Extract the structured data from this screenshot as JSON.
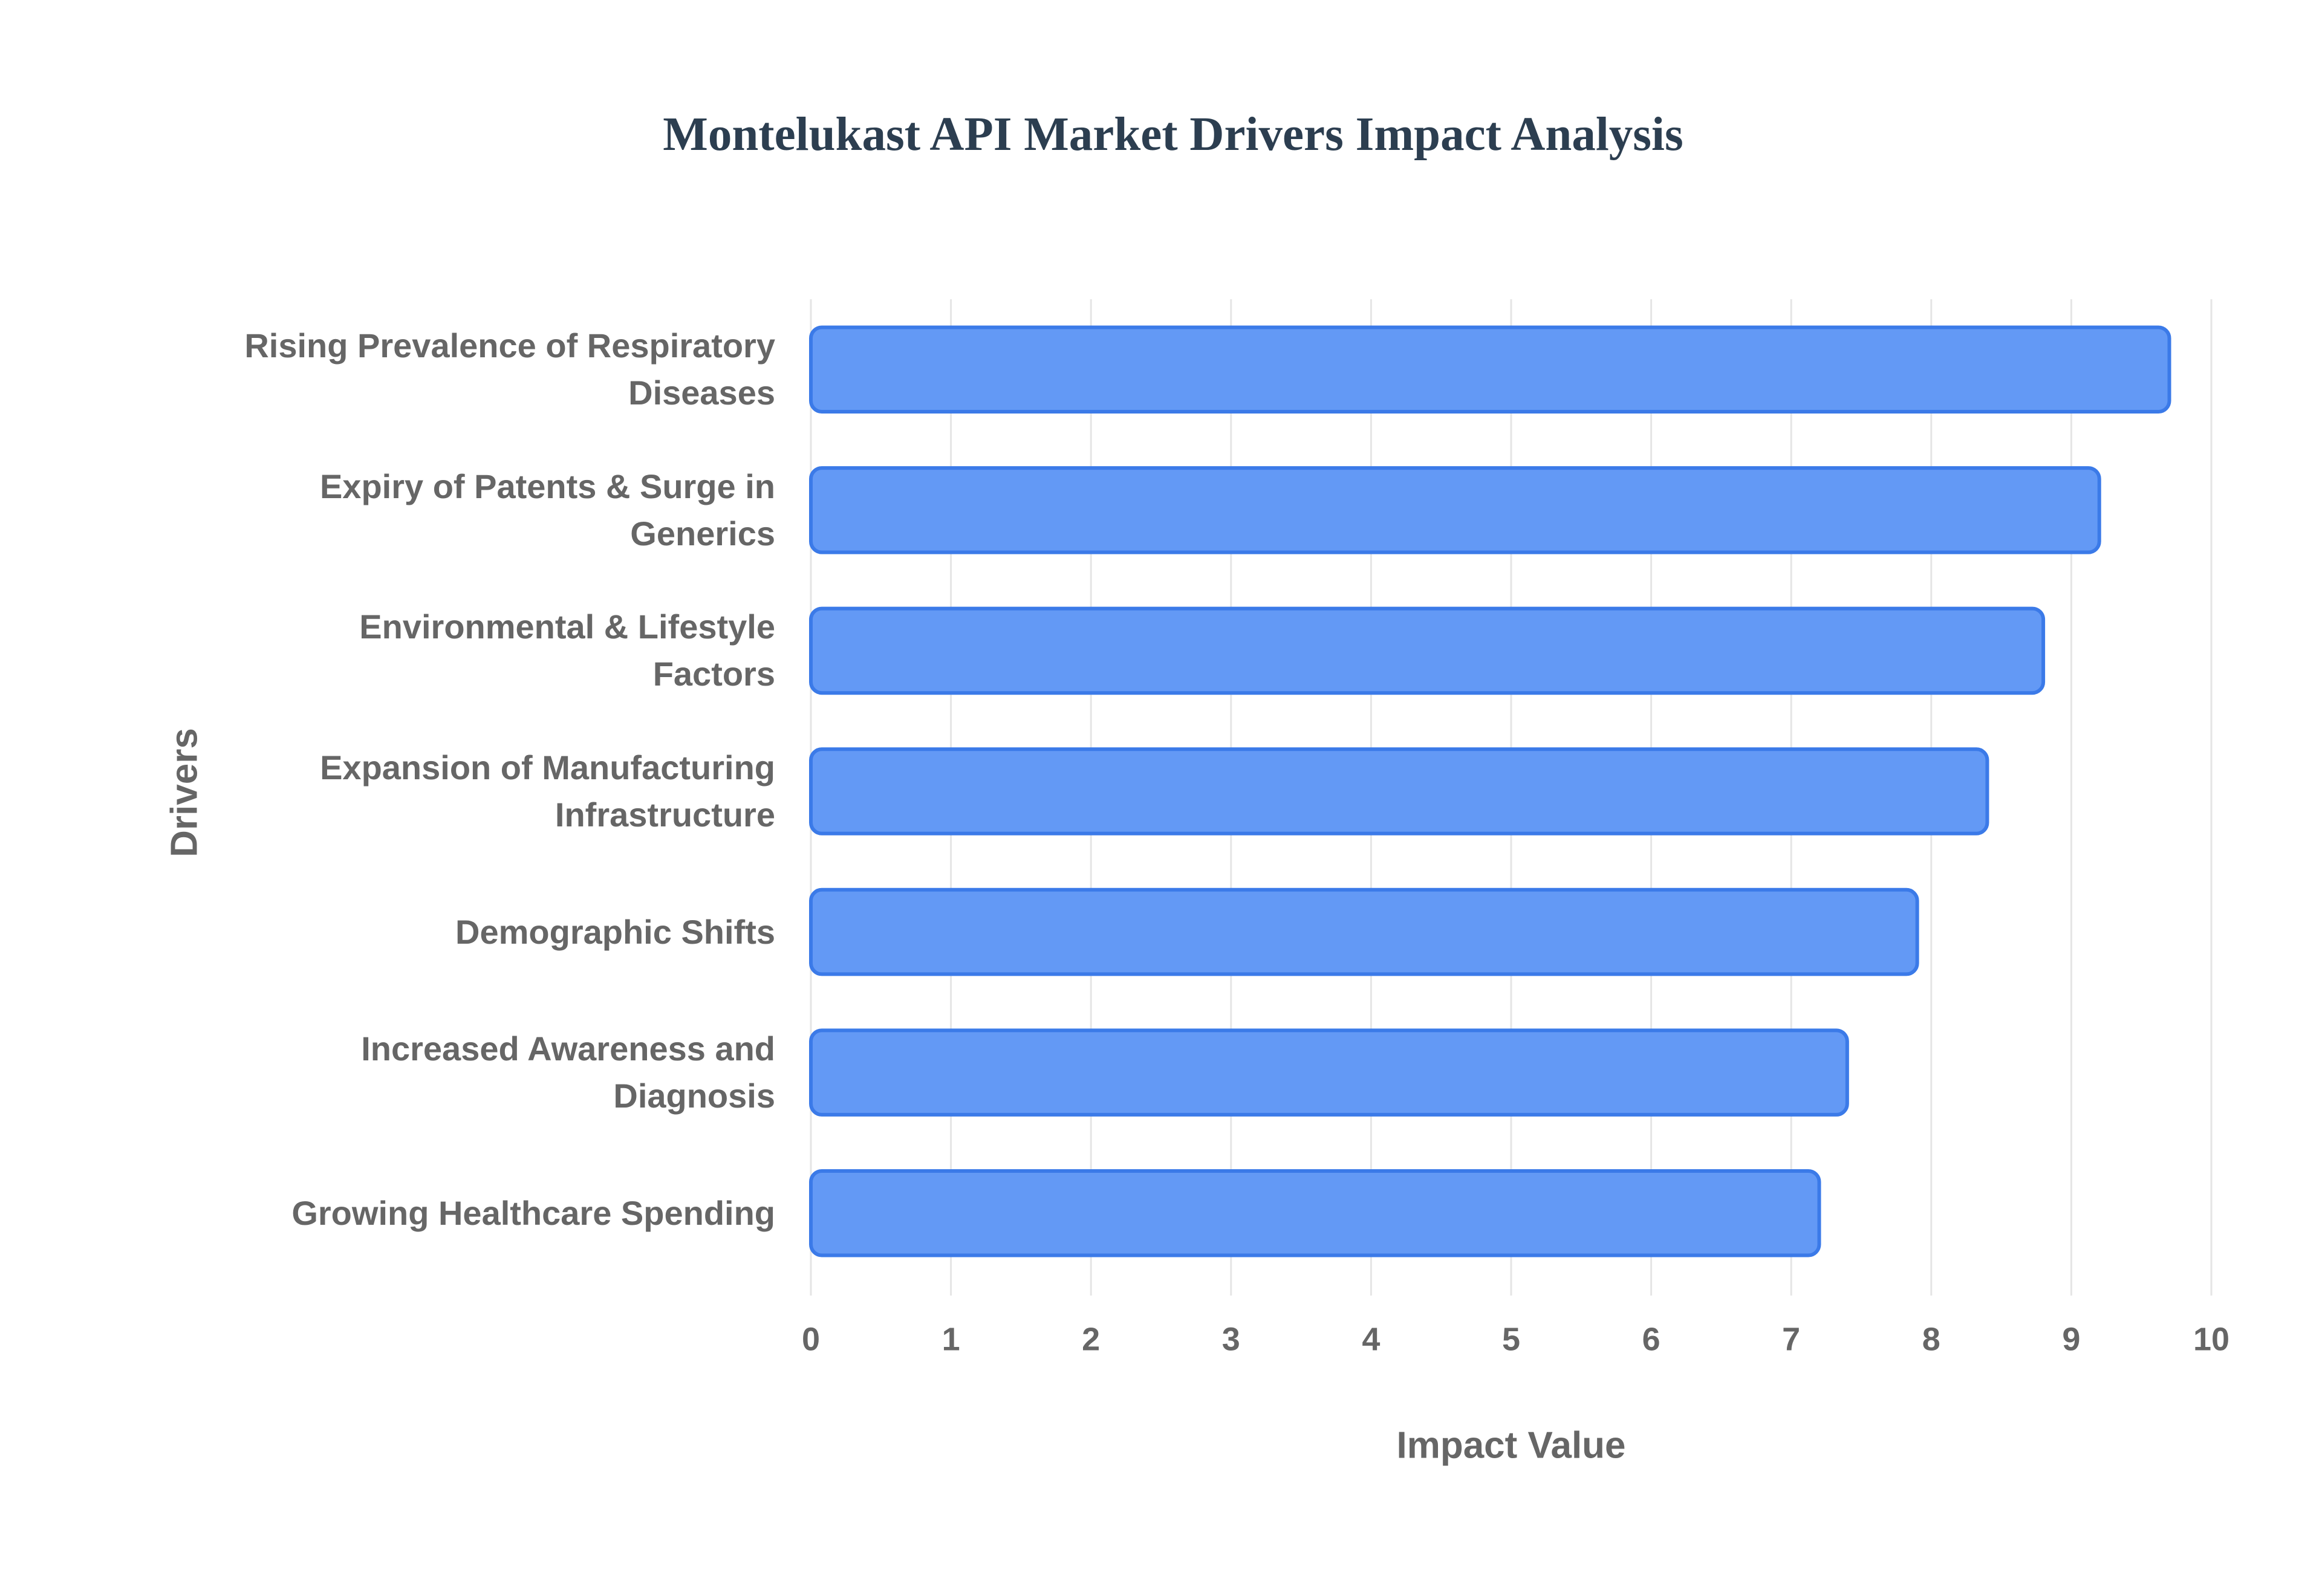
{
  "chart_data": {
    "type": "bar",
    "orientation": "horizontal",
    "title": "Montelukast API Market Drivers Impact Analysis",
    "x_label": "Impact Value",
    "y_label": "Drivers",
    "categories": [
      "Rising Prevalence of Respiratory Diseases",
      "Expiry of Patents & Surge in Generics",
      "Environmental & Lifestyle Factors",
      "Expansion of Manufacturing Infrastructure",
      "Demographic Shifts",
      "Increased Awareness and Diagnosis",
      "Growing Healthcare Spending"
    ],
    "values": [
      9.7,
      9.2,
      8.8,
      8.4,
      7.9,
      7.4,
      7.2
    ],
    "color": "#6399f5",
    "xlim": [
      0,
      10
    ],
    "xticks": [
      0,
      1,
      2,
      3,
      4,
      5,
      6,
      7,
      8,
      9,
      10
    ],
    "grid": true
  }
}
